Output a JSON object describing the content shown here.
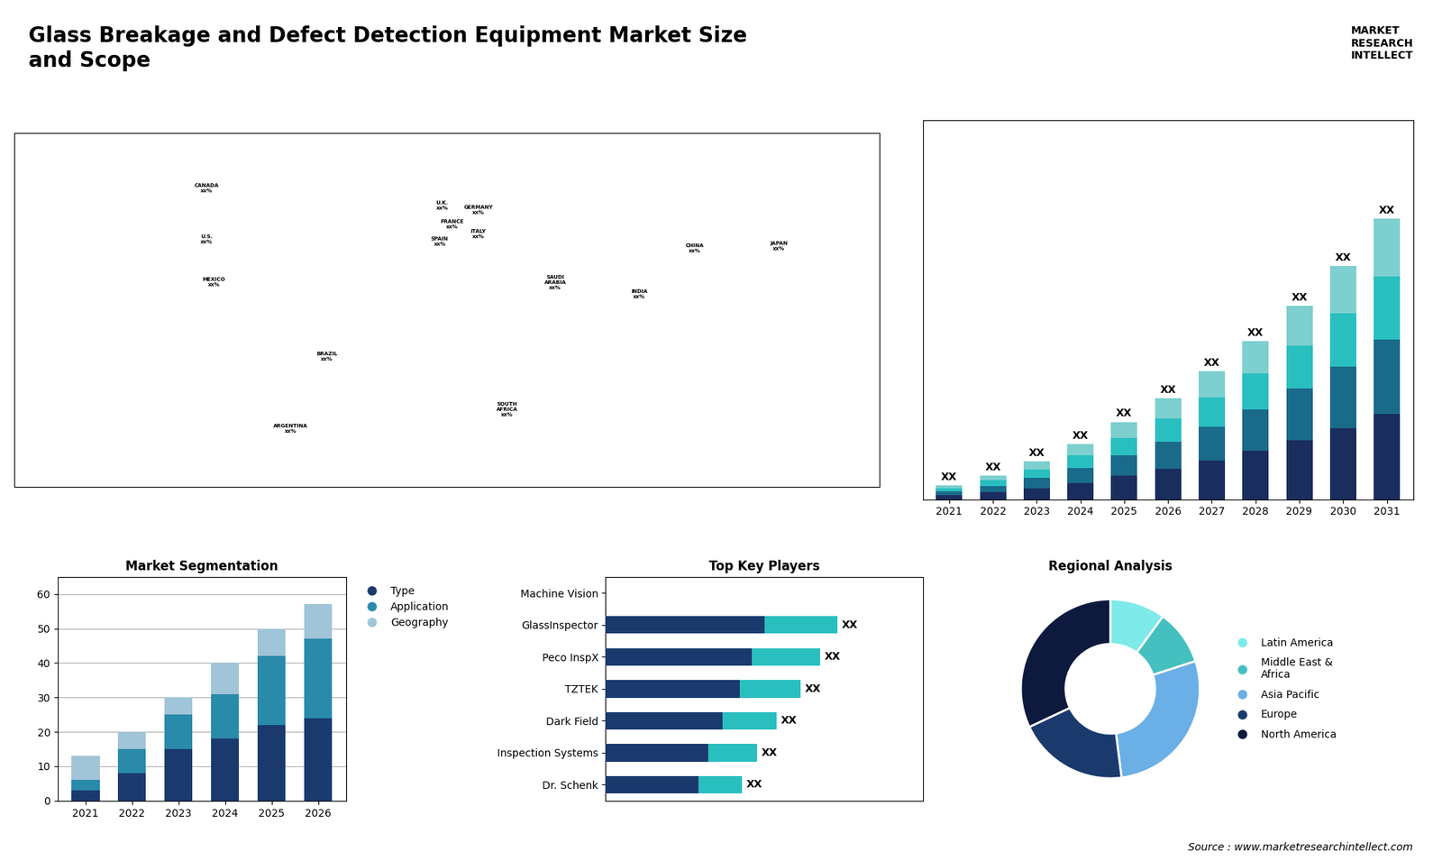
{
  "chart_data": [
    {
      "type": "bar",
      "stacked": true,
      "title": "Glass Breakage and Defect Detection Equipment Market Size\nand Scope",
      "categories": [
        "2021",
        "2022",
        "2023",
        "2024",
        "2025",
        "2026",
        "2027",
        "2028",
        "2029",
        "2030",
        "2031"
      ],
      "series": [
        {
          "color": "#1a2e5e",
          "values": [
            0.5,
            0.9,
            1.4,
            2.1,
            3.0,
            3.9,
            4.9,
            6.1,
            7.5,
            9.0,
            10.8
          ]
        },
        {
          "color": "#1a6a8a",
          "values": [
            0.5,
            0.8,
            1.3,
            1.9,
            2.6,
            3.4,
            4.3,
            5.3,
            6.5,
            7.8,
            9.4
          ]
        },
        {
          "color": "#2abfbf",
          "values": [
            0.4,
            0.7,
            1.1,
            1.6,
            2.2,
            2.9,
            3.7,
            4.5,
            5.5,
            6.7,
            8.0
          ]
        },
        {
          "color": "#7ecfcf",
          "values": [
            0.4,
            0.6,
            1.0,
            1.4,
            2.0,
            2.6,
            3.3,
            4.1,
            5.0,
            6.0,
            7.3
          ],
          "value_labels": [
            "XX",
            "XX",
            "XX",
            "XX",
            "XX",
            "XX",
            "XX",
            "XX",
            "XX",
            "XX",
            "XX"
          ]
        }
      ],
      "ylim": [
        0,
        47.925
      ],
      "yticks": [],
      "tick_labels": "x",
      "annotations": [
        "MARKET\nRESEARCH\nINTELLECT",
        "Source : www.marketresearchintellect.com"
      ]
    },
    {
      "type": "map",
      "xlim": [
        -180,
        180
      ],
      "ylim": [
        -62,
        85
      ],
      "xticks": [],
      "yticks": [],
      "tick_labels": false,
      "annotations": [
        {
          "text": "CANADA\nxx%",
          "x": -100,
          "y": 62
        },
        {
          "text": "U.S.\nxx%",
          "x": -100,
          "y": 41
        },
        {
          "text": "MEXICO\nxx%",
          "x": -97,
          "y": 23
        },
        {
          "text": "BRAZIL\nxx%",
          "x": -50,
          "y": -8
        },
        {
          "text": "ARGENTINA\nxx%",
          "x": -65,
          "y": -38
        },
        {
          "text": "U.K.\nxx%",
          "x": -2,
          "y": 55
        },
        {
          "text": "FRANCE\nxx%",
          "x": 2,
          "y": 47
        },
        {
          "text": "SPAIN\nxx%",
          "x": -3,
          "y": 40
        },
        {
          "text": "GERMANY\nxx%",
          "x": 13,
          "y": 53
        },
        {
          "text": "ITALY\nxx%",
          "x": 13,
          "y": 43
        },
        {
          "text": "SOUTH\nAFRICA\nxx%",
          "x": 25,
          "y": -30
        },
        {
          "text": "SAUDI\nARABIA\nxx%",
          "x": 45,
          "y": 23
        },
        {
          "text": "CHINA\nxx%",
          "x": 103,
          "y": 37
        },
        {
          "text": "INDIA\nxx%",
          "x": 80,
          "y": 18
        },
        {
          "text": "JAPAN\nxx%",
          "x": 138,
          "y": 38
        }
      ]
    },
    {
      "type": "bar",
      "stacked": true,
      "title": "Market Segmentation",
      "categories": [
        "2021",
        "2022",
        "2023",
        "2024",
        "2025",
        "2026"
      ],
      "series": [
        {
          "name": "Type",
          "color": "#1a3a6e",
          "values": [
            3,
            8,
            15,
            18,
            22,
            24
          ]
        },
        {
          "name": "Application",
          "color": "#2a8aaa",
          "values": [
            3,
            7,
            10,
            13,
            20,
            23
          ]
        },
        {
          "name": "Geography",
          "color": "#a0c4d8",
          "values": [
            7,
            5,
            5,
            9,
            8,
            10
          ]
        }
      ],
      "ylim": [
        0,
        65
      ],
      "yticks": [
        0,
        10,
        20,
        30,
        40,
        50,
        60
      ],
      "grid": true,
      "legend": "upper left"
    },
    {
      "type": "bar",
      "stacked": true,
      "orientation": "horizontal",
      "title": "Top Key Players",
      "categories": [
        "Machine Vision",
        "GlassInspector",
        "Peco InspX",
        "TZTEK",
        "Dark Field",
        "Inspection Systems",
        "Dr. Schenk"
      ],
      "series": [
        {
          "color": "#1a3a6e",
          "values": [
            0.0,
            6.5,
            6.0,
            5.5,
            4.8,
            4.2,
            3.8
          ]
        },
        {
          "color": "#2abfbf",
          "values": [
            0.0,
            3.0,
            2.8,
            2.5,
            2.2,
            2.0,
            1.8
          ],
          "value_labels": [
            null,
            "XX",
            "XX",
            "XX",
            "XX",
            "XX",
            "XX"
          ]
        }
      ],
      "xlim": [
        0,
        13
      ],
      "xticks": [],
      "tick_labels": "y"
    },
    {
      "type": "donut",
      "title": "Regional Analysis",
      "categories": [
        "Latin America",
        "Middle East &\nAfrica",
        "Asia Pacific",
        "Europe",
        "North America"
      ],
      "values": [
        10,
        10,
        28,
        20,
        32
      ],
      "colors": [
        "#7eeaea",
        "#45c0c0",
        "#6aafe6",
        "#1a3a6e",
        "#0d1a3e"
      ],
      "legend": "center left"
    }
  ]
}
